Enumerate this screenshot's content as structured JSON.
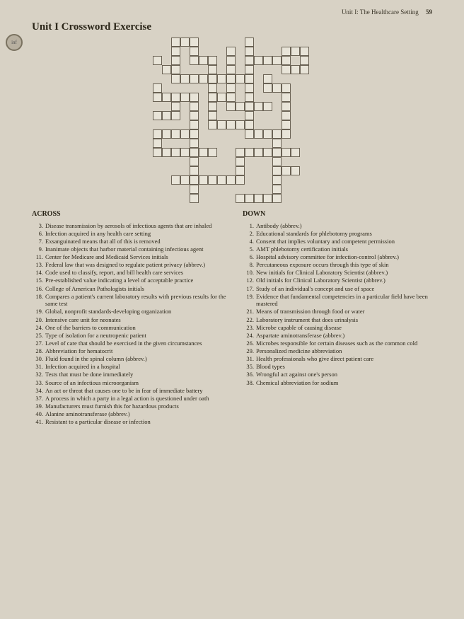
{
  "header": {
    "unit_label": "Unit I: The Healthcare Setting",
    "page_number": "59"
  },
  "title": "Unit I Crossword Exercise",
  "spiral_label": "inf",
  "grid": {
    "rows": 18,
    "cols": 18,
    "pattern": [
      "..WWW.....W.......",
      "..W.W...W.W...WWW.",
      "W.W.WWW.W.WWWWW.W.",
      ".WW...W.W.W...WWW.",
      "..WWWWWWWWW.W.....",
      "W.....W.W.W.WWW...",
      "WWWWW.WWW.W...W...",
      "..W.W.W.WWWWW.W...",
      "WWW.W.W...W...W...",
      "....W.WWWWW...W...",
      "WWWWW.....WWWWW...",
      "W...W........W....",
      "WWWWWWW..WWWWWWW..",
      "....W....W...W....",
      "....W....W...WWW..",
      "..WWWWWWWW...W....",
      "....W........W....",
      "....W....WWWWW...."
    ],
    "colors": {
      "white": "#e8e4d8",
      "black": "#9d9585",
      "border": "#6a6254"
    }
  },
  "clues": {
    "across_header": "ACROSS",
    "down_header": "DOWN",
    "across": [
      {
        "n": "3.",
        "t": "Disease transmission by aerosols of infectious agents that are inhaled"
      },
      {
        "n": "6.",
        "t": "Infection acquired in any health care setting"
      },
      {
        "n": "7.",
        "t": "Exsanguinated means that all of this is removed"
      },
      {
        "n": "9.",
        "t": "Inanimate objects that harbor material containing infectious agent"
      },
      {
        "n": "11.",
        "t": "Center for Medicare and Medicaid Services initials"
      },
      {
        "n": "13.",
        "t": "Federal law that was designed to regulate patient privacy (abbrev.)"
      },
      {
        "n": "14.",
        "t": "Code used to classify, report, and bill health care services"
      },
      {
        "n": "15.",
        "t": "Pre-established value indicating a level of acceptable practice"
      },
      {
        "n": "16.",
        "t": "College of American Pathologists initials"
      },
      {
        "n": "18.",
        "t": "Compares a patient's current laboratory results with previous results for the same test"
      },
      {
        "n": "19.",
        "t": "Global, nonprofit standards-developing organization"
      },
      {
        "n": "20.",
        "t": "Intensive care unit for neonates"
      },
      {
        "n": "24.",
        "t": "One of the barriers to communication"
      },
      {
        "n": "25.",
        "t": "Type of isolation for a neutropenic patient"
      },
      {
        "n": "27.",
        "t": "Level of care that should be exercised in the given circumstances"
      },
      {
        "n": "28.",
        "t": "Abbreviation for hematocrit"
      },
      {
        "n": "30.",
        "t": "Fluid found in the spinal column (abbrev.)"
      },
      {
        "n": "31.",
        "t": "Infection acquired in a hospital"
      },
      {
        "n": "32.",
        "t": "Tests that must be done immediately"
      },
      {
        "n": "33.",
        "t": "Source of an infectious microorganism"
      },
      {
        "n": "34.",
        "t": "An act or threat that causes one to be in fear of immediate battery"
      },
      {
        "n": "37.",
        "t": "A process in which a party in a legal action is questioned under oath"
      },
      {
        "n": "39.",
        "t": "Manufacturers must furnish this for hazardous products"
      },
      {
        "n": "40.",
        "t": "Alanine aminotransferase (abbrev.)"
      },
      {
        "n": "41.",
        "t": "Resistant to a particular disease or infection"
      }
    ],
    "down": [
      {
        "n": "1.",
        "t": "Antibody (abbrev.)"
      },
      {
        "n": "2.",
        "t": "Educational standards for phlebotomy programs"
      },
      {
        "n": "4.",
        "t": "Consent that implies voluntary and competent permission"
      },
      {
        "n": "5.",
        "t": "AMT phlebotomy certification initials"
      },
      {
        "n": "6.",
        "t": "Hospital advisory committee for infection-control (abbrev.)"
      },
      {
        "n": "8.",
        "t": "Percutaneous exposure occurs through this type of skin"
      },
      {
        "n": "10.",
        "t": "New initials for Clinical Laboratory Scientist (abbrev.)"
      },
      {
        "n": "12.",
        "t": "Old initials for Clinical Laboratory Scientist (abbrev.)"
      },
      {
        "n": "17.",
        "t": "Study of an individual's concept and use of space"
      },
      {
        "n": "19.",
        "t": "Evidence that fundamental competencies in a particular field have been mastered"
      },
      {
        "n": "21.",
        "t": "Means of transmission through food or water"
      },
      {
        "n": "22.",
        "t": "Laboratory instrument that does urinalysis"
      },
      {
        "n": "23.",
        "t": "Microbe capable of causing disease"
      },
      {
        "n": "24.",
        "t": "Aspartate aminotransferase (abbrev.)"
      },
      {
        "n": "26.",
        "t": "Microbes responsible for certain diseases such as the common cold"
      },
      {
        "n": "29.",
        "t": "Personalized medicine abbreviation"
      },
      {
        "n": "31.",
        "t": "Health professionals who give direct patient care"
      },
      {
        "n": "35.",
        "t": "Blood types"
      },
      {
        "n": "36.",
        "t": "Wrongful act against one's person"
      },
      {
        "n": "38.",
        "t": "Chemical abbreviation for sodium"
      }
    ]
  }
}
